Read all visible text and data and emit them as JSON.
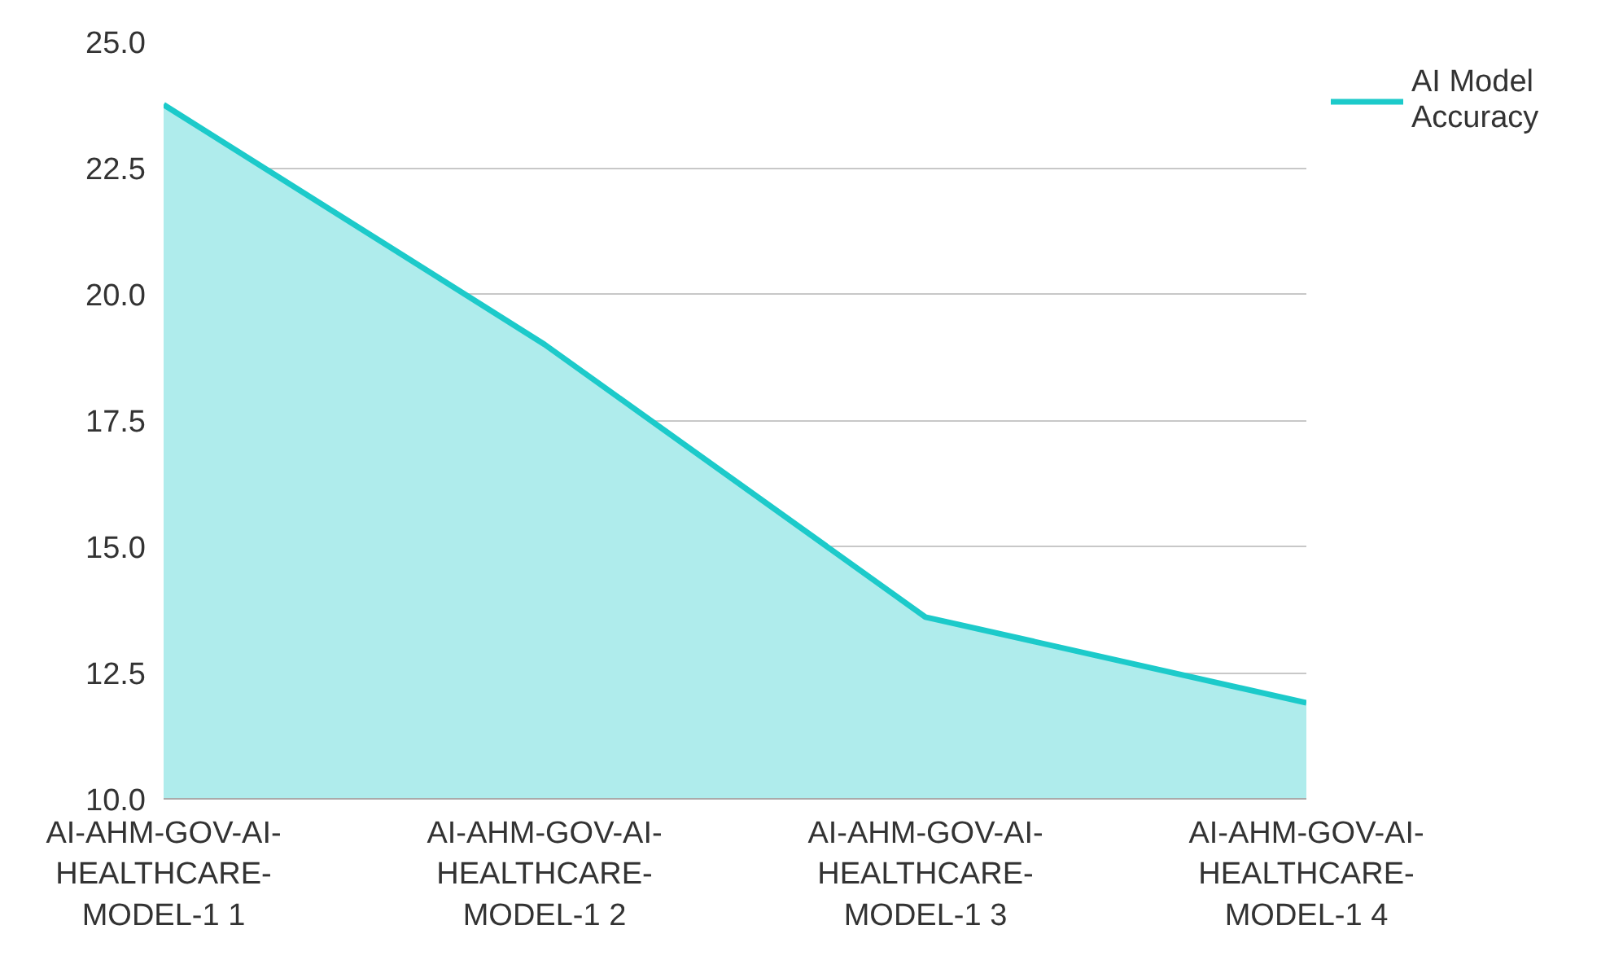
{
  "chart_data": {
    "type": "area",
    "categories": [
      "AI-AHM-GOV-AI-HEALTHCARE-MODEL-1 1",
      "AI-AHM-GOV-AI-HEALTHCARE-MODEL-1 2",
      "AI-AHM-GOV-AI-HEALTHCARE-MODEL-1 3",
      "AI-AHM-GOV-AI-HEALTHCARE-MODEL-1 4"
    ],
    "series": [
      {
        "name": "AI Model Accuracy",
        "color": "#1ccaca",
        "values": [
          23.75,
          19.0,
          13.6,
          11.9
        ]
      }
    ],
    "ylim": [
      10,
      25
    ],
    "yticks": [
      {
        "value": 10,
        "label": "10.0"
      },
      {
        "value": 12.5,
        "label": "12.5"
      },
      {
        "value": 15,
        "label": "15.0"
      },
      {
        "value": 17.5,
        "label": "17.5"
      },
      {
        "value": 20,
        "label": "20.0"
      },
      {
        "value": 22.5,
        "label": "22.5"
      },
      {
        "value": 25,
        "label": "25.0"
      }
    ],
    "grid": "y",
    "legend": "top right"
  }
}
